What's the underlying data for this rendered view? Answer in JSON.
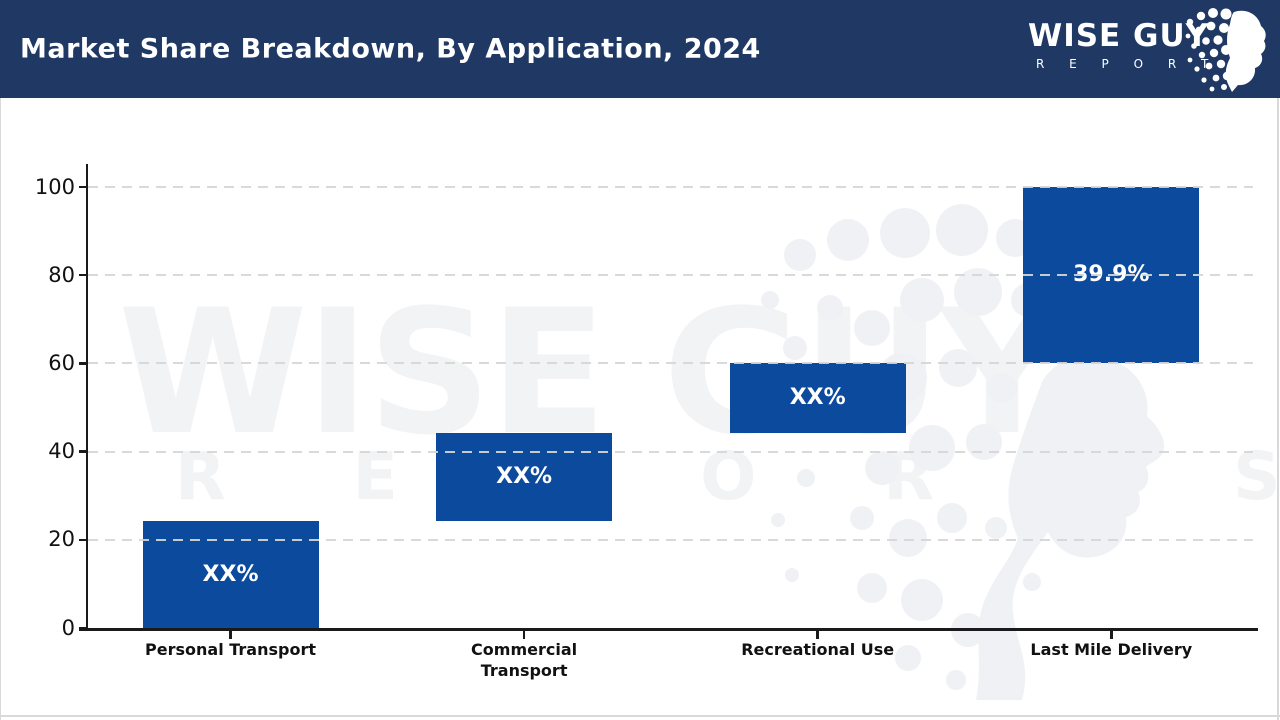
{
  "header": {
    "title": "Market Share Breakdown, By Application, 2024",
    "logo": {
      "line1": "WISE GUY",
      "line2": "R E P O R T S"
    }
  },
  "watermark": {
    "line1": "WISE GUY",
    "line2": "R E P O R T S"
  },
  "chart_data": {
    "type": "bar",
    "subtype": "waterfall",
    "title": "Market Share Breakdown, By Application, 2024",
    "categories": [
      "Personal Transport",
      "Commercial\nTransport",
      "Recreational Use",
      "Last Mile Delivery"
    ],
    "segments": [
      {
        "category": "Personal Transport",
        "start": 0,
        "end": 24.2,
        "label": "XX%"
      },
      {
        "category": "Commercial Transport",
        "start": 24.2,
        "end": 44.3,
        "label": "XX%"
      },
      {
        "category": "Recreational Use",
        "start": 44.3,
        "end": 60.2,
        "label": "XX%"
      },
      {
        "category": "Last Mile Delivery",
        "start": 60.1,
        "end": 100,
        "label": "39.9%"
      }
    ],
    "xlabel": "",
    "ylabel": "",
    "yticks": [
      0,
      20,
      40,
      60,
      80,
      100
    ],
    "ylim": [
      0,
      105
    ],
    "grid": "dashed-horizontal",
    "legend": "none",
    "bar_color": "#0b4a9c",
    "bar_label_color": "#ffffff",
    "axis_color": "#1a1a1a",
    "gridline_color": "#d6d6d6",
    "header_background": "#1f3864",
    "watermark_color": "#f2f3f5"
  }
}
